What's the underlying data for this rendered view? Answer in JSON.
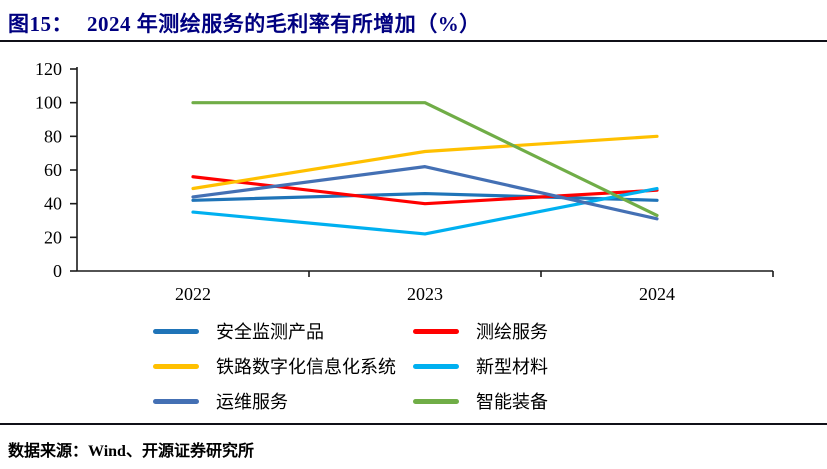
{
  "header": {
    "figure_label": "图15：",
    "title": "2024 年测绘服务的毛利率有所增加（%）"
  },
  "chart_data": {
    "type": "line",
    "x": [
      "2022",
      "2023",
      "2024"
    ],
    "series": [
      {
        "name": "安全监测产品",
        "color": "#1F74B8",
        "values": [
          42,
          46,
          42
        ]
      },
      {
        "name": "测绘服务",
        "color": "#FF0000",
        "values": [
          56,
          40,
          48
        ]
      },
      {
        "name": "铁路数字化信息化系统",
        "color": "#FFC000",
        "values": [
          49,
          71,
          80
        ]
      },
      {
        "name": "新型材料",
        "color": "#00B0F0",
        "values": [
          35,
          22,
          49
        ]
      },
      {
        "name": "运维服务",
        "color": "#4470B4",
        "values": [
          44,
          62,
          31
        ]
      },
      {
        "name": "智能装备",
        "color": "#70AD47",
        "values": [
          100,
          100,
          33
        ]
      }
    ],
    "ylim": [
      0,
      120
    ],
    "ytick_step": 20,
    "grid": false,
    "legend_position": "bottom-two-columns",
    "axis_color": "#1a1a1a"
  },
  "source": {
    "text": "数据来源：Wind、开源证券研究所"
  }
}
